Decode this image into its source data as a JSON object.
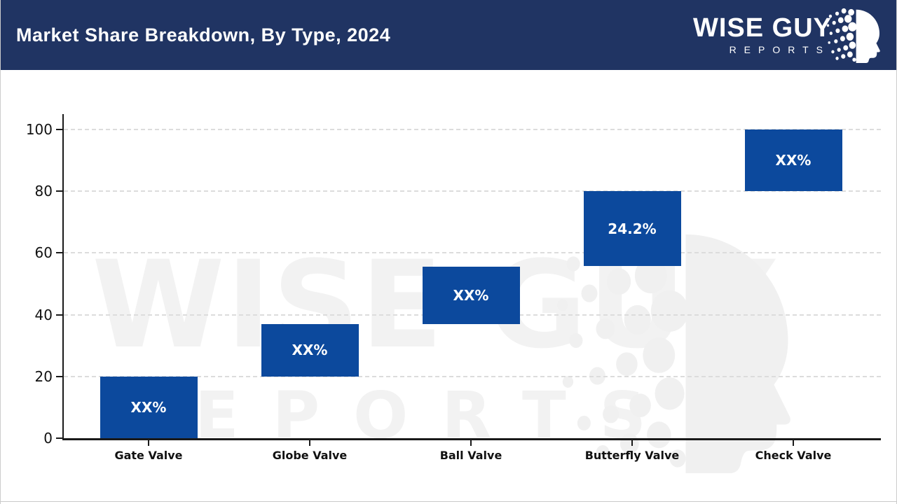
{
  "header": {
    "title": "Market Share Breakdown, By Type, 2024",
    "logo": {
      "name": "WISE GUY",
      "tagline": "REPORTS"
    }
  },
  "watermark": {
    "name": "WISE GUY",
    "tagline": "REPORTS"
  },
  "colors": {
    "header_bg": "#203463",
    "bar": "#0c499d",
    "grid": "#dcdcdc",
    "axis": "#1a1a1a",
    "tick_text": "#111111",
    "bar_label_text": "#ffffff",
    "watermark": "#f2f2f2"
  },
  "chart_data": {
    "type": "bar",
    "subtype": "waterfall",
    "title": "Market Share Breakdown, By Type, 2024",
    "categories": [
      "Gate Valve",
      "Globe Valve",
      "Ball Valve",
      "Butterfly Valve",
      "Check Valve"
    ],
    "segments": [
      {
        "category": "Gate Valve",
        "start": 0,
        "end": 20,
        "label": "XX%"
      },
      {
        "category": "Globe Valve",
        "start": 20,
        "end": 37,
        "label": "XX%"
      },
      {
        "category": "Ball Valve",
        "start": 37,
        "end": 55.5,
        "label": "XX%"
      },
      {
        "category": "Butterfly Valve",
        "start": 55.8,
        "end": 80,
        "label": "24.2%"
      },
      {
        "category": "Check Valve",
        "start": 80,
        "end": 100,
        "label": "XX%"
      }
    ],
    "y_ticks": [
      0,
      20,
      40,
      60,
      80,
      100
    ],
    "ylim": [
      0,
      105
    ],
    "xlabel": "",
    "ylabel": "",
    "grid": "horizontal-dashed",
    "legend": "none",
    "bar_color": "#0c499d"
  }
}
